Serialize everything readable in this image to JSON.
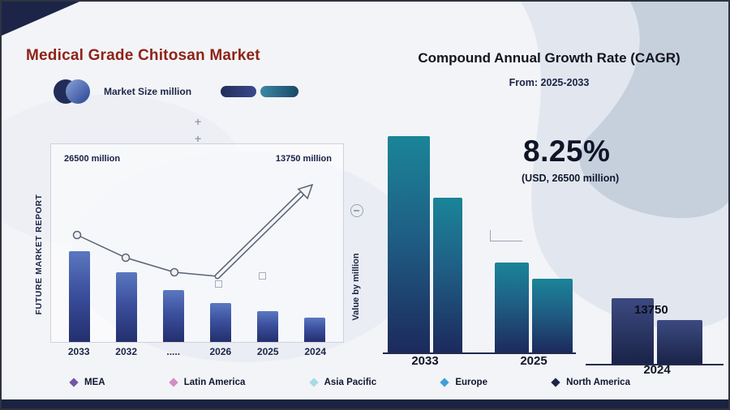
{
  "colors": {
    "navy": "#1c2547",
    "teal": "#1a8598",
    "title_red": "#8e2318",
    "left_bar_top": "#5a78c0",
    "left_bar_bottom": "#232f6e",
    "bottom_bar": "#1b2340"
  },
  "left_panel": {
    "title": "Medical Grade Chitosan  Market",
    "market_size_label": "Market Size million"
  },
  "right_panel": {
    "title": "Compound Annual Growth Rate (CAGR)",
    "subtitle": "From: 2025-2033",
    "cagr_value": "8.25%",
    "cagr_usd": "(USD, 26500 million)",
    "value_label": "13750"
  },
  "legend": [
    {
      "label": "MEA",
      "color": "#7456a8"
    },
    {
      "label": "Latin America",
      "color": "#d48cc0"
    },
    {
      "label": "Asia Pacific",
      "color": "#a9d9e8"
    },
    {
      "label": "Europe",
      "color": "#3f9fd8"
    },
    {
      "label": "North America",
      "color": "#1c2547"
    }
  ],
  "chart_data": [
    {
      "id": "market-size-by-year",
      "type": "bar",
      "title": "Medical Grade Chitosan Market — Market Size (million)",
      "categories": [
        "2033",
        "2032",
        ".....",
        "2026",
        "2025",
        "2024"
      ],
      "values": [
        26500,
        22500,
        19000,
        16500,
        15000,
        13750
      ],
      "ylim": [
        9000,
        27000
      ],
      "ylabel": "FUTURE MARKET REPORT",
      "annotations": [
        "26500 million",
        "13750 million"
      ],
      "trend": "markers decline from 2033 to 2026, then outlined arrow rises toward the 13750 million label",
      "grid": false,
      "legend_position": "top-left"
    },
    {
      "id": "cagr-comparison",
      "type": "bar",
      "title": "Compound Annual Growth Rate (CAGR)",
      "subtitle": "From: 2025-2033",
      "categories": [
        "2033",
        "2025",
        "2024"
      ],
      "series": [
        {
          "name": "series-1",
          "values": [
            26500,
            11000,
            8000
          ]
        },
        {
          "name": "series-2",
          "values": [
            19000,
            9000,
            5400
          ]
        }
      ],
      "ylim": [
        0,
        27000
      ],
      "ylabel": "Value by million",
      "annotations": [
        "8.25%",
        "(USD, 26500 million)",
        "13750"
      ],
      "grid": false
    }
  ]
}
